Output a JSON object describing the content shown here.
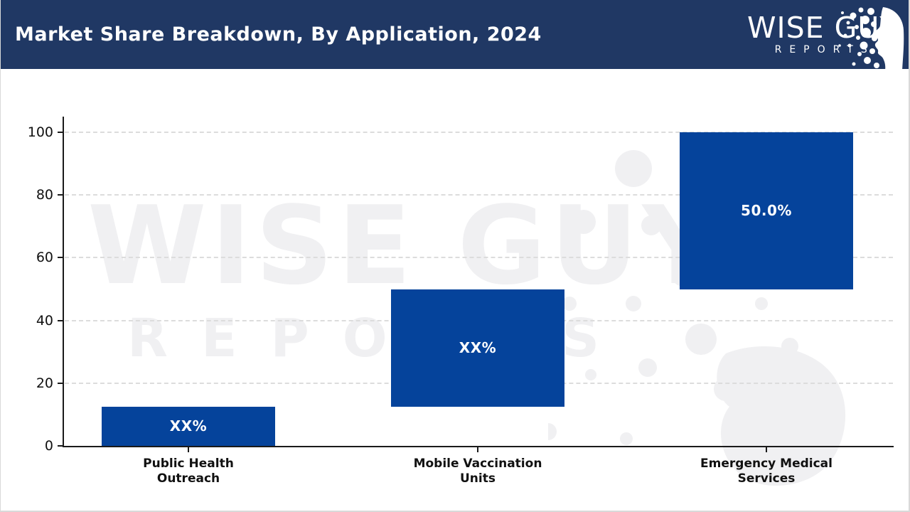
{
  "header": {
    "title": "Market Share Breakdown, By Application, 2024",
    "brand": {
      "name": "WISE GUY",
      "subtitle": "REPORTS"
    }
  },
  "watermark": {
    "name": "WISE GUY",
    "subtitle": "REPORTS"
  },
  "colors": {
    "header_bg": "#203864",
    "bar": "#05439b",
    "grid": "#dcdcdc",
    "axis": "#1a1a1a",
    "text": "#111111",
    "bar_label": "#ffffff",
    "watermark": "#f0f0f2"
  },
  "chart_data": {
    "type": "bar",
    "variant": "waterfall-stacked-percentage",
    "title": "Market Share Breakdown, By Application, 2024",
    "categories": [
      "Public Health\nOutreach",
      "Mobile Vaccination\nUnits",
      "Emergency Medical\nServices"
    ],
    "segments": [
      {
        "category": "Public Health Outreach",
        "label": "XX%",
        "start": 0,
        "end": 12.5
      },
      {
        "category": "Mobile Vaccination Units",
        "label": "XX%",
        "start": 12.5,
        "end": 50
      },
      {
        "category": "Emergency Medical Services",
        "label": "50.0%",
        "start": 50,
        "end": 100
      }
    ],
    "yticks": [
      0,
      20,
      40,
      60,
      80,
      100
    ],
    "ylim": [
      0,
      105
    ],
    "grid": "horizontal-dashed",
    "legend": false,
    "xlabel": "",
    "ylabel": ""
  }
}
